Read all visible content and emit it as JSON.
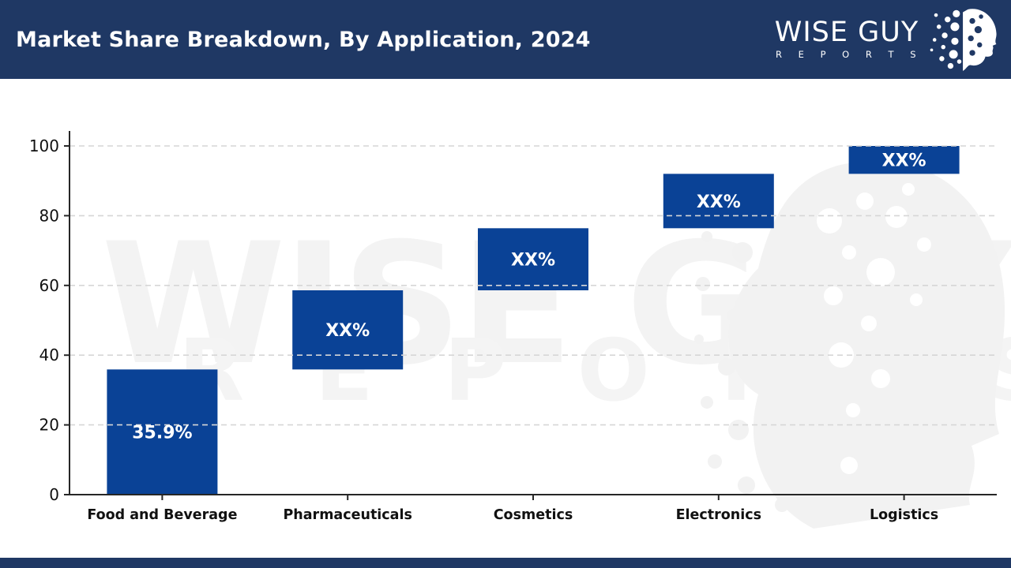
{
  "header": {
    "title": "Market Share Breakdown, By Application, 2024"
  },
  "logo": {
    "line1": "WISE GUY",
    "line2": "R E P O R T S"
  },
  "watermark": {
    "line1": "WISE GUY",
    "line2": "R E P O R T S"
  },
  "colors": {
    "header_bg": "#1f3864",
    "footer_bg": "#1f3864",
    "bar": "#0a4296",
    "bar_label": "#ffffff",
    "axis": "#262626",
    "grid": "#d6d6d6",
    "tick_label": "#111111",
    "watermark": "#f2f2f2"
  },
  "chart_data": {
    "type": "bar",
    "subtype": "floating-waterfall",
    "title": "Market Share Breakdown, By Application, 2024",
    "categories": [
      "Food and Beverage",
      "Pharmaceuticals",
      "Cosmetics",
      "Electronics",
      "Logistics"
    ],
    "segments": [
      {
        "category": "Food and Beverage",
        "start": 0,
        "end": 35.9,
        "label": "35.9%"
      },
      {
        "category": "Pharmaceuticals",
        "start": 35.9,
        "end": 58.6,
        "label": "XX%"
      },
      {
        "category": "Cosmetics",
        "start": 58.6,
        "end": 76.4,
        "label": "XX%"
      },
      {
        "category": "Electronics",
        "start": 76.4,
        "end": 92.0,
        "label": "XX%"
      },
      {
        "category": "Logistics",
        "start": 92.0,
        "end": 100,
        "label": "XX%"
      }
    ],
    "xlabel": "",
    "ylabel": "",
    "ylim": [
      0,
      100
    ],
    "yticks": [
      0,
      20,
      40,
      60,
      80,
      100
    ],
    "grid": "horizontal-dashed",
    "legend": "none"
  }
}
